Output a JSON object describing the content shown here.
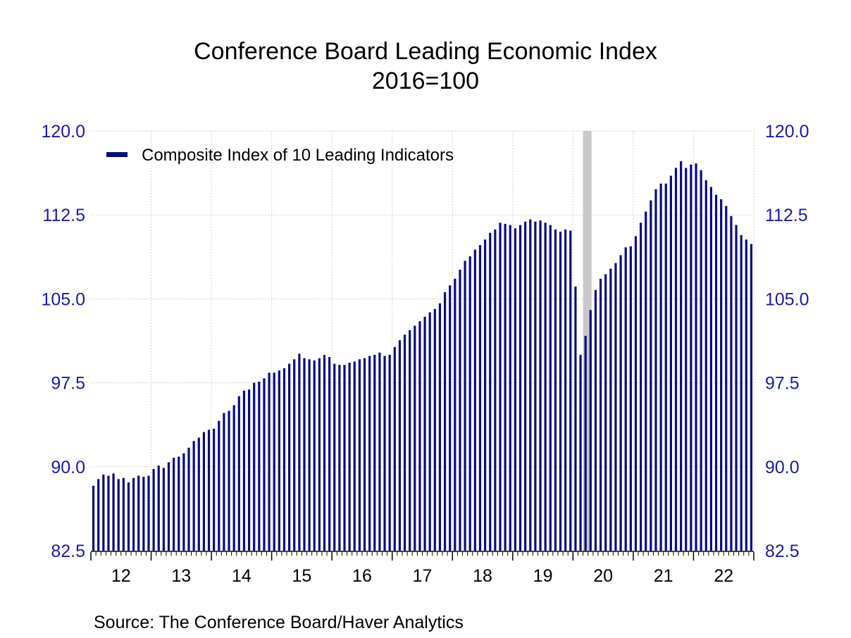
{
  "title": "Conference Board Leading Economic Index",
  "subtitle": "2016=100",
  "source": "Source:  The Conference Board/Haver Analytics",
  "colors": {
    "bar": "#0b0b80",
    "recession": "#c8c8c8",
    "grid": "#d0d0d0",
    "axis_text": "#1a1aa6"
  },
  "chart_data": {
    "type": "bar",
    "title": "Conference Board Leading Economic Index",
    "subtitle": "2016=100",
    "frequency": "monthly",
    "start": "2012-01",
    "ylim": [
      82.5,
      120.0
    ],
    "yticks": [
      "82.5",
      "90.0",
      "97.5",
      "105.0",
      "112.5",
      "120.0"
    ],
    "ytick_values": [
      82.5,
      90.0,
      97.5,
      105.0,
      112.5,
      120.0
    ],
    "y_axis_both_sides": true,
    "xticks": [
      "12",
      "13",
      "14",
      "15",
      "16",
      "17",
      "18",
      "19",
      "20",
      "21",
      "22"
    ],
    "grid": true,
    "legend_position": "top-left",
    "shaded_recession": {
      "start": "2020-03",
      "end": "2020-04"
    },
    "series": [
      {
        "name": "Composite Index of 10 Leading Indicators",
        "values": [
          88.3,
          88.9,
          89.3,
          89.2,
          89.4,
          88.9,
          89.0,
          88.6,
          89.0,
          89.2,
          89.1,
          89.2,
          89.8,
          90.1,
          89.9,
          90.4,
          90.8,
          90.9,
          91.2,
          91.7,
          92.3,
          92.6,
          93.1,
          93.3,
          93.4,
          94.1,
          94.8,
          95.0,
          95.5,
          96.3,
          96.8,
          96.9,
          97.5,
          97.6,
          97.9,
          98.4,
          98.4,
          98.6,
          98.8,
          99.2,
          99.6,
          100.1,
          99.7,
          99.6,
          99.5,
          99.7,
          100.0,
          99.8,
          99.2,
          99.1,
          99.1,
          99.3,
          99.4,
          99.6,
          99.7,
          99.9,
          100.0,
          100.2,
          99.9,
          100.0,
          100.7,
          101.3,
          101.8,
          102.2,
          102.6,
          103.0,
          103.4,
          103.8,
          104.1,
          104.6,
          105.6,
          106.2,
          106.8,
          107.6,
          108.4,
          108.8,
          109.4,
          109.8,
          110.3,
          110.9,
          111.2,
          111.8,
          111.7,
          111.6,
          111.3,
          111.6,
          111.9,
          112.1,
          111.9,
          112.0,
          111.8,
          111.6,
          111.2,
          111.0,
          111.2,
          111.1,
          106.1,
          100.0,
          101.7,
          104.0,
          105.8,
          106.8,
          107.2,
          107.7,
          108.2,
          108.9,
          109.6,
          109.7,
          110.6,
          111.8,
          112.8,
          113.8,
          114.8,
          115.3,
          115.3,
          116.0,
          116.7,
          117.3,
          116.7,
          117.0,
          117.1,
          116.5,
          115.6,
          115.0,
          114.3,
          113.9,
          113.3,
          112.4,
          111.6,
          110.7,
          110.3,
          109.9
        ]
      }
    ]
  }
}
